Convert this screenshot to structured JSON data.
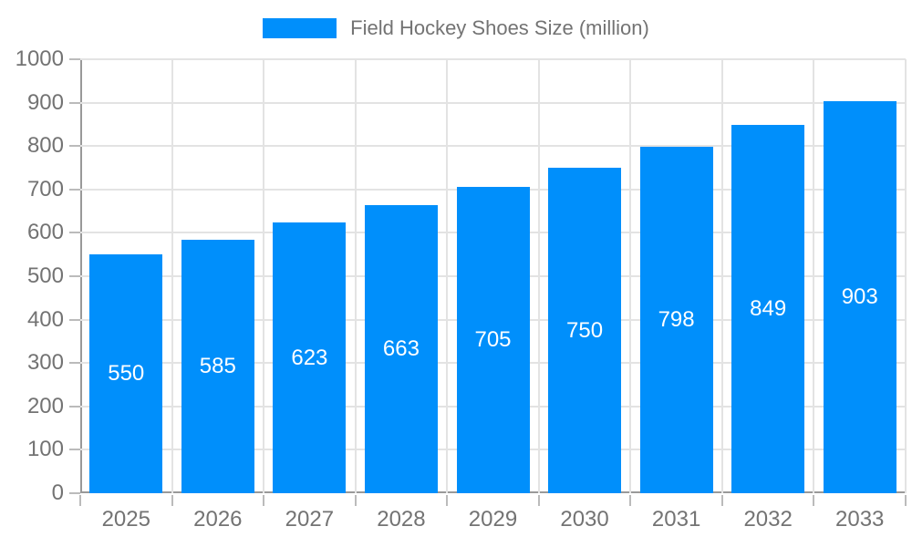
{
  "chart_data": {
    "type": "bar",
    "title": "Field Hockey Shoes Size (million)",
    "legend_position": "top",
    "categories": [
      "2025",
      "2026",
      "2027",
      "2028",
      "2029",
      "2030",
      "2031",
      "2032",
      "2033"
    ],
    "values": [
      550,
      585,
      623,
      663,
      705,
      750,
      798,
      849,
      903
    ],
    "xlabel": "",
    "ylabel": "",
    "ylim": [
      0,
      1000
    ],
    "y_ticks": [
      0,
      100,
      200,
      300,
      400,
      500,
      600,
      700,
      800,
      900,
      1000
    ],
    "grid": true,
    "colors": {
      "bar": "#008FFB",
      "bar_label": "#ffffff",
      "axis_text": "#737373",
      "axis_line": "#999999",
      "gridline": "#e3e3e3",
      "tick": "#bbbbbb",
      "background": "#ffffff"
    }
  }
}
